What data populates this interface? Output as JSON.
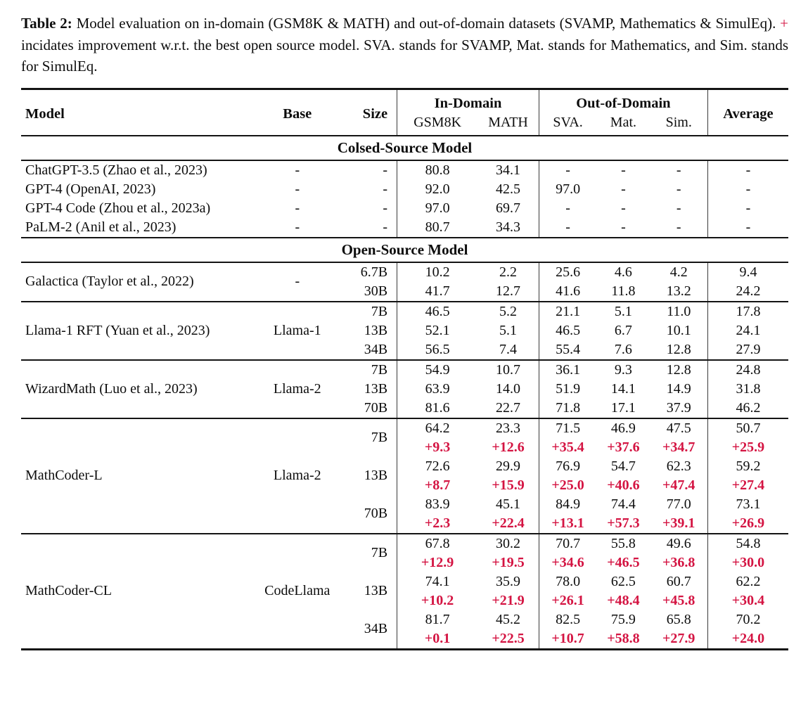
{
  "caption": {
    "label": "Table 2:",
    "before_plus": "Model evaluation on in-domain (GSM8K & MATH) and out-of-domain datasets (SVAMP, Mathematics & SimulEq).",
    "plus_marker": "+",
    "after_plus": "incidates improvement w.r.t. the best open source model. SVA. stands for SVAMP, Mat. stands for Mathematics, and Sim. stands for SimulEq."
  },
  "colors": {
    "delta_red": "#d41442"
  },
  "table": {
    "header": {
      "model": "Model",
      "base": "Base",
      "size": "Size",
      "in_domain": "In-Domain",
      "out_of_domain": "Out-of-Domain",
      "average": "Average",
      "sub": [
        "GSM8K",
        "MATH",
        "SVA.",
        "Mat.",
        "Sim."
      ]
    },
    "sections": [
      {
        "title": "Colsed-Source Model",
        "blocks": [
          [
            {
              "model": "ChatGPT-3.5 (Zhao et al., 2023)",
              "base": "-",
              "rows": [
                {
                  "size": "-",
                  "values": [
                    "80.8",
                    "34.1",
                    "-",
                    "-",
                    "-",
                    "-"
                  ]
                }
              ]
            },
            {
              "model": "GPT-4 (OpenAI, 2023)",
              "base": "-",
              "rows": [
                {
                  "size": "-",
                  "values": [
                    "92.0",
                    "42.5",
                    "97.0",
                    "-",
                    "-",
                    "-"
                  ]
                }
              ]
            },
            {
              "model": "GPT-4 Code (Zhou et al., 2023a)",
              "base": "-",
              "rows": [
                {
                  "size": "-",
                  "values": [
                    "97.0",
                    "69.7",
                    "-",
                    "-",
                    "-",
                    "-"
                  ]
                }
              ]
            },
            {
              "model": "PaLM-2 (Anil et al., 2023)",
              "base": "-",
              "rows": [
                {
                  "size": "-",
                  "values": [
                    "80.7",
                    "34.3",
                    "-",
                    "-",
                    "-",
                    "-"
                  ]
                }
              ]
            }
          ]
        ]
      },
      {
        "title": "Open-Source Model",
        "blocks": [
          [
            {
              "model": "Galactica (Taylor et al., 2022)",
              "base": "-",
              "rows": [
                {
                  "size": "6.7B",
                  "values": [
                    "10.2",
                    "2.2",
                    "25.6",
                    "4.6",
                    "4.2",
                    "9.4"
                  ]
                },
                {
                  "size": "30B",
                  "values": [
                    "41.7",
                    "12.7",
                    "41.6",
                    "11.8",
                    "13.2",
                    "24.2"
                  ]
                }
              ]
            }
          ],
          [
            {
              "model": "Llama-1 RFT (Yuan et al., 2023)",
              "base": "Llama-1",
              "rows": [
                {
                  "size": "7B",
                  "values": [
                    "46.5",
                    "5.2",
                    "21.1",
                    "5.1",
                    "11.0",
                    "17.8"
                  ]
                },
                {
                  "size": "13B",
                  "values": [
                    "52.1",
                    "5.1",
                    "46.5",
                    "6.7",
                    "10.1",
                    "24.1"
                  ]
                },
                {
                  "size": "34B",
                  "values": [
                    "56.5",
                    "7.4",
                    "55.4",
                    "7.6",
                    "12.8",
                    "27.9"
                  ]
                }
              ]
            }
          ],
          [
            {
              "model": "WizardMath (Luo et al., 2023)",
              "base": "Llama-2",
              "rows": [
                {
                  "size": "7B",
                  "values": [
                    "54.9",
                    "10.7",
                    "36.1",
                    "9.3",
                    "12.8",
                    "24.8"
                  ]
                },
                {
                  "size": "13B",
                  "values": [
                    "63.9",
                    "14.0",
                    "51.9",
                    "14.1",
                    "14.9",
                    "31.8"
                  ]
                },
                {
                  "size": "70B",
                  "values": [
                    "81.6",
                    "22.7",
                    "71.8",
                    "17.1",
                    "37.9",
                    "46.2"
                  ]
                }
              ]
            }
          ],
          [
            {
              "model": "MathCoder-L",
              "base": "Llama-2",
              "rows": [
                {
                  "size": "7B",
                  "values": [
                    "64.2",
                    "23.3",
                    "71.5",
                    "46.9",
                    "47.5",
                    "50.7"
                  ],
                  "delta": [
                    "+9.3",
                    "+12.6",
                    "+35.4",
                    "+37.6",
                    "+34.7",
                    "+25.9"
                  ]
                },
                {
                  "size": "13B",
                  "values": [
                    "72.6",
                    "29.9",
                    "76.9",
                    "54.7",
                    "62.3",
                    "59.2"
                  ],
                  "delta": [
                    "+8.7",
                    "+15.9",
                    "+25.0",
                    "+40.6",
                    "+47.4",
                    "+27.4"
                  ]
                },
                {
                  "size": "70B",
                  "values": [
                    "83.9",
                    "45.1",
                    "84.9",
                    "74.4",
                    "77.0",
                    "73.1"
                  ],
                  "delta": [
                    "+2.3",
                    "+22.4",
                    "+13.1",
                    "+57.3",
                    "+39.1",
                    "+26.9"
                  ]
                }
              ]
            }
          ],
          [
            {
              "model": "MathCoder-CL",
              "base": "CodeLlama",
              "rows": [
                {
                  "size": "7B",
                  "values": [
                    "67.8",
                    "30.2",
                    "70.7",
                    "55.8",
                    "49.6",
                    "54.8"
                  ],
                  "delta": [
                    "+12.9",
                    "+19.5",
                    "+34.6",
                    "+46.5",
                    "+36.8",
                    "+30.0"
                  ]
                },
                {
                  "size": "13B",
                  "values": [
                    "74.1",
                    "35.9",
                    "78.0",
                    "62.5",
                    "60.7",
                    "62.2"
                  ],
                  "delta": [
                    "+10.2",
                    "+21.9",
                    "+26.1",
                    "+48.4",
                    "+45.8",
                    "+30.4"
                  ]
                },
                {
                  "size": "34B",
                  "values": [
                    "81.7",
                    "45.2",
                    "82.5",
                    "75.9",
                    "65.8",
                    "70.2"
                  ],
                  "delta": [
                    "+0.1",
                    "+22.5",
                    "+10.7",
                    "+58.8",
                    "+27.9",
                    "+24.0"
                  ]
                }
              ]
            }
          ]
        ]
      }
    ]
  }
}
